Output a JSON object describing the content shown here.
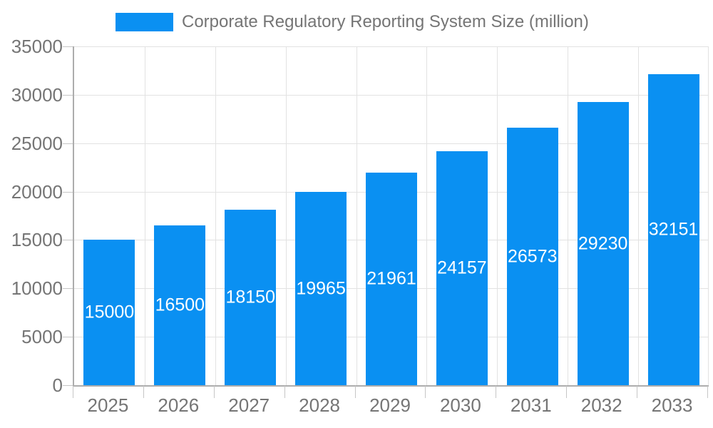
{
  "legend": {
    "label": "Corporate Regulatory Reporting System Size (million)"
  },
  "colors": {
    "bar": "#0a90f2",
    "grid": "#e2e2e2",
    "axis": "#adadad",
    "tick": "#c6c6c6",
    "axis_label_text": "#757575",
    "bar_label_text": "#ffffff",
    "background": "#ffffff"
  },
  "chart_data": {
    "type": "bar",
    "title": "Corporate Regulatory Reporting System Size (million)",
    "categories": [
      "2025",
      "2026",
      "2027",
      "2028",
      "2029",
      "2030",
      "2031",
      "2032",
      "2033"
    ],
    "values": [
      15000,
      16500,
      18150,
      19965,
      21961,
      24157,
      26573,
      29230,
      32151
    ],
    "bar_labels": [
      "15000",
      "16500",
      "18150",
      "19965",
      "21961",
      "24157",
      "26573",
      "29230",
      "32151"
    ],
    "xlabel": "",
    "ylabel": "",
    "ylim": [
      0,
      35000
    ],
    "ytick_step": 5000,
    "ytick_labels": [
      "0",
      "5000",
      "10000",
      "15000",
      "20000",
      "25000",
      "30000",
      "35000"
    ],
    "grid": true,
    "legend_position": "top",
    "bar_labels_position": "inside-center"
  }
}
